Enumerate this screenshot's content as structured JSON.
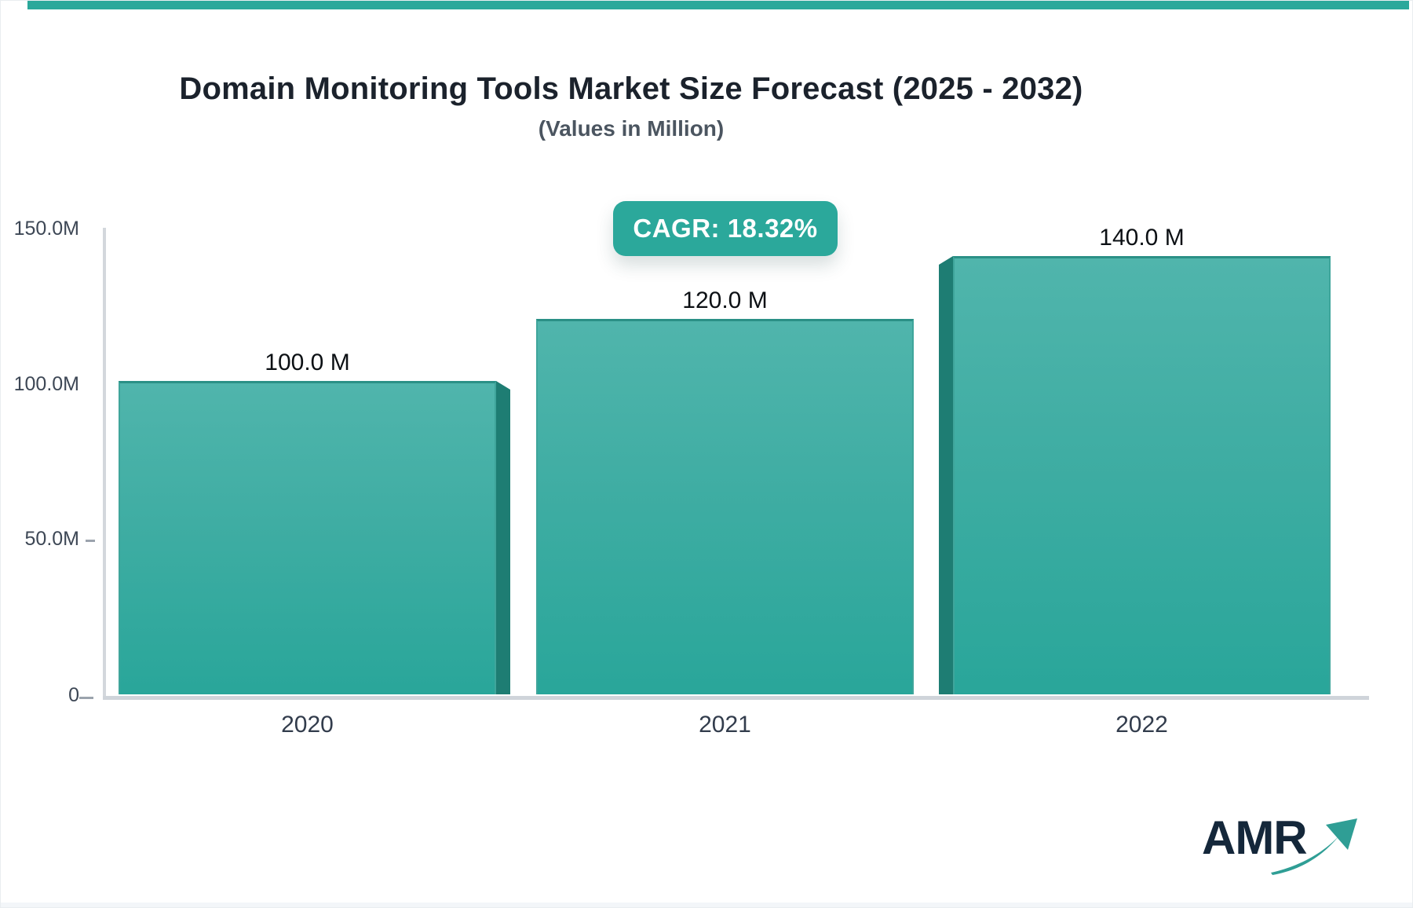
{
  "header": {
    "title": "Domain Monitoring Tools Market Size Forecast (2025 - 2032)",
    "subtitle": "(Values in Million)",
    "cagr_badge": "CAGR: 18.32%"
  },
  "chart_data": {
    "type": "bar",
    "title": "Domain Monitoring Tools Market Size Forecast (2025 - 2032)",
    "subtitle": "(Values in Million)",
    "unit": "Million",
    "cagr_percent": "18.32%",
    "categories": [
      "2020",
      "2021",
      "2022"
    ],
    "values": [
      100.0,
      120.0,
      140.0
    ],
    "value_labels": [
      "100.0 M",
      "120.0 M",
      "140.0 M"
    ],
    "y_axis": {
      "ticks": [
        "150.0M",
        "100.0M",
        "50.0M",
        "0"
      ],
      "range": [
        0,
        150
      ]
    },
    "grid": false,
    "legend": "none",
    "accent_color": "#2ba89b",
    "bar_color_top": "#50b5ac",
    "bar_color_bottom": "#29a69a",
    "bar_side_color": "#1e7d73",
    "axis_color": "#cfd4da"
  },
  "logo": {
    "text": "AMR",
    "icon": "growth-arrow-icon",
    "text_color": "#14273a",
    "arrow_color": "#2f9e95"
  }
}
